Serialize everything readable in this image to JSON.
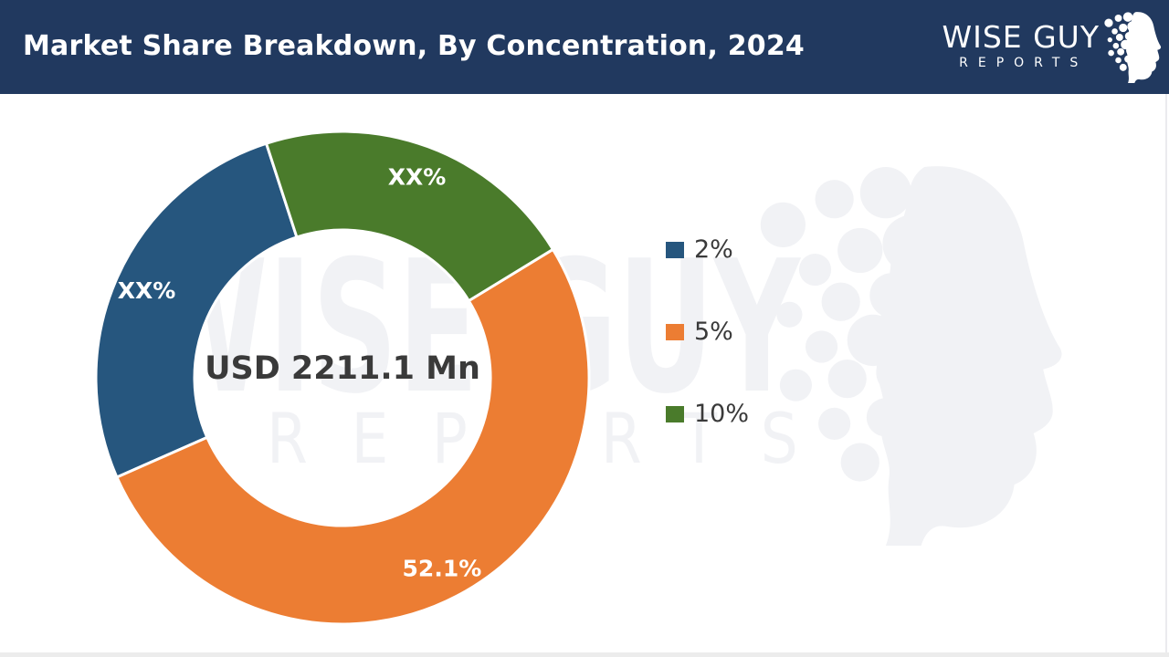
{
  "header": {
    "title": "Market Share Breakdown, By Concentration, 2024",
    "logo": {
      "line1": "WISE GUY",
      "line2": "REPORTS"
    }
  },
  "watermark": {
    "line1": "WISE GUY",
    "line2": "REPORTS"
  },
  "colors": {
    "header_bg": "#21395F",
    "header_text": "#FFFFFF",
    "center_text": "#3A3A3A",
    "legend_text": "#3A3A3A",
    "watermark": "#F1F2F5",
    "slice_gap": "#FFFFFF"
  },
  "chart_data": {
    "type": "donut",
    "title": "Market Share Breakdown, By Concentration, 2024",
    "center_label": "USD 2211.1 Mn",
    "legend_position": "right",
    "start_reference": "degrees clockwise from 12 o'clock",
    "slices": [
      {
        "legend_label": "2%",
        "slice_label": "XX%",
        "color": "#26567E",
        "start_deg": 246.2,
        "sweep_deg": 95.8,
        "share_of_ring_pct": 26.6
      },
      {
        "legend_label": "5%",
        "slice_label": "52.1%",
        "color": "#EC7D33",
        "start_deg": 58.6,
        "sweep_deg": 187.6,
        "share_of_ring_pct": 52.1
      },
      {
        "legend_label": "10%",
        "slice_label": "XX%",
        "color": "#4A7B2B",
        "start_deg": -18.0,
        "sweep_deg": 76.6,
        "share_of_ring_pct": 21.3
      }
    ]
  }
}
